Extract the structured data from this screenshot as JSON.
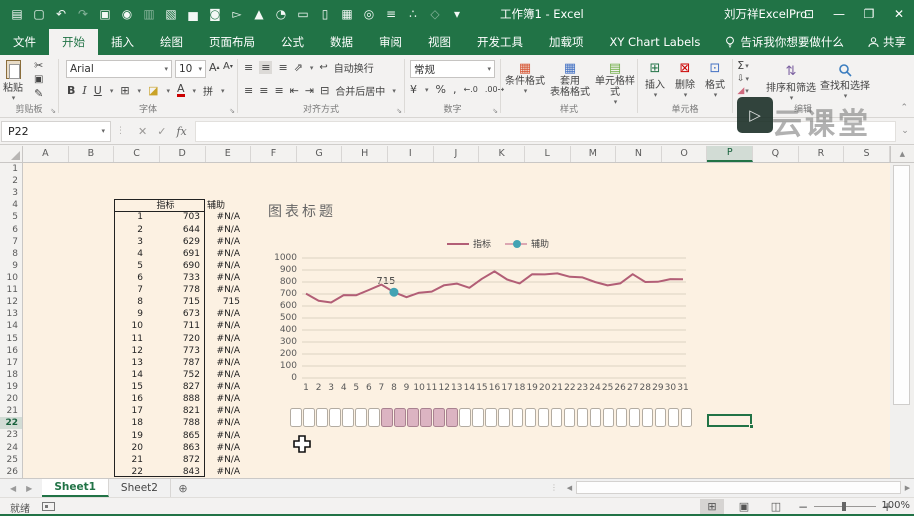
{
  "window": {
    "title": "工作簿1 - Excel",
    "user": "刘万祥ExcelPro",
    "tell_me": "告诉我你想要做什么",
    "share_label": "共享"
  },
  "qat_icons": [
    {
      "name": "save",
      "glyph": "▤"
    },
    {
      "name": "new-file",
      "glyph": "▢"
    },
    {
      "name": "undo",
      "glyph": "↶"
    },
    {
      "name": "redo",
      "glyph": "↷",
      "dim": true
    },
    {
      "name": "print-preview",
      "glyph": "▣"
    },
    {
      "name": "touch-mode",
      "glyph": "◉"
    },
    {
      "name": "copy",
      "glyph": "▥",
      "dim": true
    },
    {
      "name": "paste-special",
      "glyph": "▧"
    },
    {
      "name": "insert-chart",
      "glyph": "▅"
    },
    {
      "name": "camera",
      "glyph": "◙"
    },
    {
      "name": "select-pointer",
      "glyph": "▻"
    },
    {
      "name": "triangle-shape",
      "glyph": "▲"
    },
    {
      "name": "pie-chart",
      "glyph": "◔"
    },
    {
      "name": "text-box",
      "glyph": "▭"
    },
    {
      "name": "rectangle-shape",
      "glyph": "▯"
    },
    {
      "name": "grid-view",
      "glyph": "▦"
    },
    {
      "name": "record-macro",
      "glyph": "◎"
    },
    {
      "name": "align-objects",
      "glyph": "≡"
    },
    {
      "name": "scatter-chart",
      "glyph": "∴"
    },
    {
      "name": "shapes",
      "glyph": "◇",
      "dim": true
    },
    {
      "name": "customize-qat",
      "glyph": "▾"
    }
  ],
  "tabs": [
    {
      "id": "file",
      "label": "文件",
      "file": true
    },
    {
      "id": "home",
      "label": "开始",
      "active": true
    },
    {
      "id": "insert",
      "label": "插入"
    },
    {
      "id": "draw",
      "label": "绘图"
    },
    {
      "id": "page-layout",
      "label": "页面布局"
    },
    {
      "id": "formulas",
      "label": "公式"
    },
    {
      "id": "data",
      "label": "数据"
    },
    {
      "id": "review",
      "label": "审阅"
    },
    {
      "id": "view",
      "label": "视图"
    },
    {
      "id": "developer",
      "label": "开发工具"
    },
    {
      "id": "add-ins",
      "label": "加载项"
    },
    {
      "id": "xy-chart-labels",
      "label": "XY Chart Labels"
    }
  ],
  "ribbon": {
    "clipboard": {
      "label": "剪贴板",
      "paste": "粘贴"
    },
    "font": {
      "label": "字体",
      "name": "Arial",
      "size": "10",
      "bold": "B",
      "italic": "I",
      "underline": "U",
      "pinyin": "拼"
    },
    "alignment": {
      "label": "对齐方式",
      "wrap": "自动换行",
      "merge": "合并后居中"
    },
    "number": {
      "label": "数字",
      "format": "常规",
      "currency": "¥",
      "percent": "%",
      "comma": ","
    },
    "styles": {
      "label": "样式",
      "conditional": "条件格式",
      "table1": "套用",
      "table2": "表格格式",
      "cell": "单元格样式"
    },
    "cells": {
      "label": "单元格",
      "insert": "插入",
      "delete": "删除",
      "format": "格式"
    },
    "editing": {
      "label": "编辑",
      "autosum": "Σ",
      "sort": "排序和筛选",
      "find": "查找和选择"
    },
    "watermark": "云课堂"
  },
  "formula_bar": {
    "name_box": "P22",
    "value": ""
  },
  "grid": {
    "columns": [
      "A",
      "B",
      "C",
      "D",
      "E",
      "F",
      "G",
      "H",
      "I",
      "J",
      "K",
      "L",
      "M",
      "N",
      "O",
      "P",
      "Q",
      "R",
      "S"
    ],
    "selected_column": "P",
    "rows": [
      1,
      2,
      3,
      4,
      5,
      6,
      7,
      8,
      9,
      10,
      11,
      12,
      13,
      14,
      15,
      16,
      17,
      18,
      19,
      20,
      21,
      22,
      23,
      24,
      25,
      26
    ],
    "selected_row": 22
  },
  "table": {
    "headers": [
      "指标",
      "辅助"
    ],
    "rows": [
      [
        1,
        703,
        "#N/A"
      ],
      [
        2,
        644,
        "#N/A"
      ],
      [
        3,
        629,
        "#N/A"
      ],
      [
        4,
        691,
        "#N/A"
      ],
      [
        5,
        690,
        "#N/A"
      ],
      [
        6,
        733,
        "#N/A"
      ],
      [
        7,
        778,
        "#N/A"
      ],
      [
        8,
        715,
        "715"
      ],
      [
        9,
        673,
        "#N/A"
      ],
      [
        10,
        711,
        "#N/A"
      ],
      [
        11,
        720,
        "#N/A"
      ],
      [
        12,
        773,
        "#N/A"
      ],
      [
        13,
        787,
        "#N/A"
      ],
      [
        14,
        752,
        "#N/A"
      ],
      [
        15,
        827,
        "#N/A"
      ],
      [
        16,
        888,
        "#N/A"
      ],
      [
        17,
        821,
        "#N/A"
      ],
      [
        18,
        788,
        "#N/A"
      ],
      [
        19,
        865,
        "#N/A"
      ],
      [
        20,
        863,
        "#N/A"
      ],
      [
        21,
        872,
        "#N/A"
      ],
      [
        22,
        843,
        "#N/A"
      ]
    ]
  },
  "chart_data": {
    "type": "line",
    "title": "图表标题",
    "x": [
      1,
      2,
      3,
      4,
      5,
      6,
      7,
      8,
      9,
      10,
      11,
      12,
      13,
      14,
      15,
      16,
      17,
      18,
      19,
      20,
      21,
      22,
      23,
      24,
      25,
      26,
      27,
      28,
      29,
      30,
      31
    ],
    "series": [
      {
        "name": "指标",
        "color": "#b25e76",
        "values": [
          703,
          644,
          629,
          691,
          690,
          733,
          778,
          715,
          673,
          711,
          720,
          773,
          787,
          752,
          827,
          888,
          821,
          788,
          865,
          863,
          872,
          843,
          838,
          800,
          772,
          788,
          865,
          800,
          802,
          824,
          823
        ]
      },
      {
        "name": "辅助",
        "color": "#dca7b2",
        "marker_color": "#43a3b3",
        "points": [
          {
            "x": 8,
            "y": 715,
            "label": "715"
          }
        ]
      }
    ],
    "ylim": [
      0,
      1000
    ],
    "ytick_step": 100,
    "grid": true,
    "legend_position": "top"
  },
  "day_boxes": {
    "count": 31,
    "highlighted": [
      8,
      9,
      10,
      11,
      12,
      13
    ]
  },
  "sheet_tabs": {
    "tabs": [
      {
        "label": "Sheet1",
        "active": true
      },
      {
        "label": "Sheet2"
      }
    ]
  },
  "status_bar": {
    "ready": "就绪",
    "zoom": "100%"
  }
}
